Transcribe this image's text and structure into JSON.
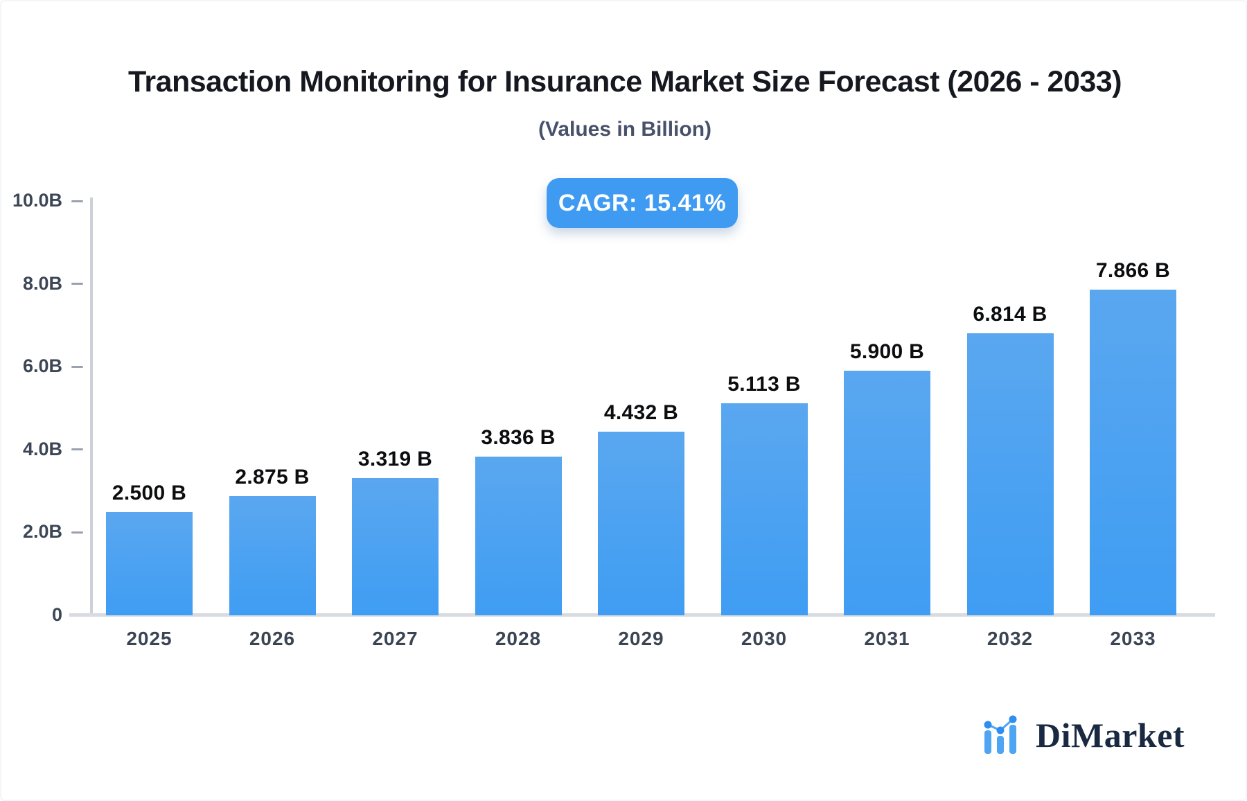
{
  "chart_data": {
    "type": "bar",
    "title": "Transaction Monitoring for Insurance Market Size Forecast (2026 - 2033)",
    "subtitle": "(Values in Billion)",
    "categories": [
      "2025",
      "2026",
      "2027",
      "2028",
      "2029",
      "2030",
      "2031",
      "2032",
      "2033"
    ],
    "values": [
      2.5,
      2.875,
      3.319,
      3.836,
      4.432,
      5.113,
      5.9,
      6.814,
      7.866
    ],
    "value_labels": [
      "2.500 B",
      "2.875 B",
      "3.319 B",
      "3.836 B",
      "4.432 B",
      "5.113 B",
      "5.900 B",
      "6.814 B",
      "7.866 B"
    ],
    "y_tick_labels": [
      "10.0B",
      "8.0B",
      "6.0B",
      "4.0B",
      "2.0B",
      "0"
    ],
    "y_tick_values": [
      10,
      8,
      6,
      4,
      2,
      0
    ],
    "ylim": [
      0,
      10
    ],
    "xlabel": "",
    "ylabel": "",
    "grid": false,
    "legend": false
  },
  "badge": {
    "label": "CAGR: 15.41%"
  },
  "branding": {
    "logo_text": "DiMarket",
    "logo_icon": "mini-bar-line-chart-icon"
  },
  "colors": {
    "badge_bg": "#3f9bf1",
    "badge_text": "#ffffff",
    "bar_top": "#5aa7f0",
    "bar_bottom": "#3f9df3",
    "bar_side_top": "#347a0d8",
    "bar_side": "#2d72b4",
    "axis_line": "#ccd1d9",
    "baseline": "#d8dbe0",
    "tick": "#9aa2ad",
    "value_label": "#0c0d0f",
    "axis_label": "#3d4656",
    "logo_navy": "#1a2942",
    "logo_blue": "#4da5f3"
  }
}
